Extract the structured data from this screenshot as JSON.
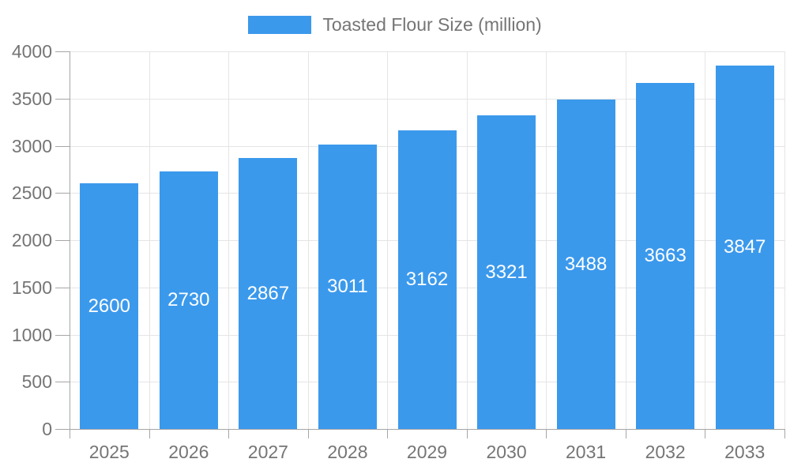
{
  "chart_data": {
    "type": "bar",
    "title": "Toasted Flour Size (million)",
    "categories": [
      "2025",
      "2026",
      "2027",
      "2028",
      "2029",
      "2030",
      "2031",
      "2032",
      "2033"
    ],
    "values": [
      2600,
      2730,
      2867,
      3011,
      3162,
      3321,
      3488,
      3663,
      3847
    ],
    "xlabel": "",
    "ylabel": "",
    "ylim": [
      0,
      4000
    ],
    "ytick_step": 500,
    "grid": true,
    "legend_position": "top-center",
    "value_labels": "inside-middle"
  },
  "colors": {
    "bar": "#3B99EC",
    "axis": "#a6a6a6",
    "grid": "#e5e5e5",
    "tick_label": "#757575",
    "bar_label": "#ffffff",
    "background": "#ffffff"
  }
}
